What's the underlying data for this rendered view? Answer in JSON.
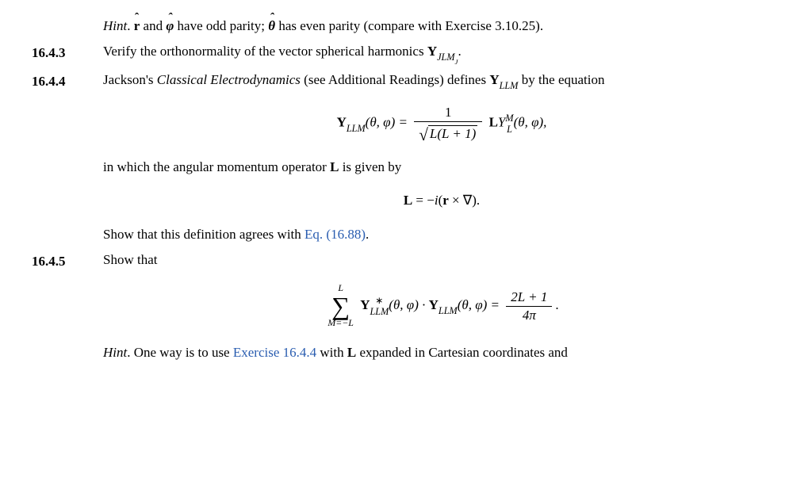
{
  "hint0_prefix": "Hint",
  "hint0_body": ". r̂ and φ̂ have odd parity; θ̂ has even parity (compare with Exercise 3.10.25).",
  "p1643_num": "16.4.3",
  "p1643_text": "Verify the orthonormality of the vector spherical harmonics ",
  "p1643_sym": "Y",
  "p1643_sub": "JLM",
  "p1643_subsub": "J",
  "p1643_end": ".",
  "p1644_num": "16.4.4",
  "p1644_a": "Jackson's ",
  "p1644_b": "Classical Electrodynamics",
  "p1644_c": " (see Additional Readings) defines ",
  "p1644_sym": "Y",
  "p1644_sub": "LLM",
  "p1644_d": " by the equation",
  "eq1_lhs_Y": "Y",
  "eq1_lhs_sub": "LLM",
  "eq1_lhs_args": "(θ, φ) = ",
  "eq1_frac_num": "1",
  "eq1_frac_den_a": "L(L + 1)",
  "eq1_rhs_a": "L",
  "eq1_rhs_Y": "Y",
  "eq1_rhs_sup": "M",
  "eq1_rhs_sub": "L",
  "eq1_rhs_args": "(θ, φ),",
  "p1644_mid_a": "in which the angular momentum operator ",
  "p1644_mid_b": "L",
  "p1644_mid_c": " is given by",
  "eq2_a": "L",
  "eq2_b": " = −",
  "eq2_c": "i",
  "eq2_d": "(",
  "eq2_e": "r",
  "eq2_f": " × ∇).",
  "p1644_end_a": "Show that this definition agrees with ",
  "p1644_end_link": "Eq. (16.88)",
  "p1644_end_b": ".",
  "p1645_num": "16.4.5",
  "p1645_text": "Show that",
  "eq3_sum_top": "L",
  "eq3_sum_bot": "M=−L",
  "eq3_Y1": "Y",
  "eq3_Y1_sup": "∗",
  "eq3_Y1_sub": "LLM",
  "eq3_args1": "(θ, φ) · ",
  "eq3_Y2": "Y",
  "eq3_Y2_sub": "LLM",
  "eq3_args2": "(θ, φ) = ",
  "eq3_frac_num": "2L + 1",
  "eq3_frac_den": "4π",
  "eq3_end": ".",
  "hint_end_a": "Hint",
  "hint_end_b": ". One way is to use ",
  "hint_end_link": "Exercise 16.4.4",
  "hint_end_c": " with ",
  "hint_end_d": "L",
  "hint_end_e": " expanded in Cartesian coordinates and"
}
